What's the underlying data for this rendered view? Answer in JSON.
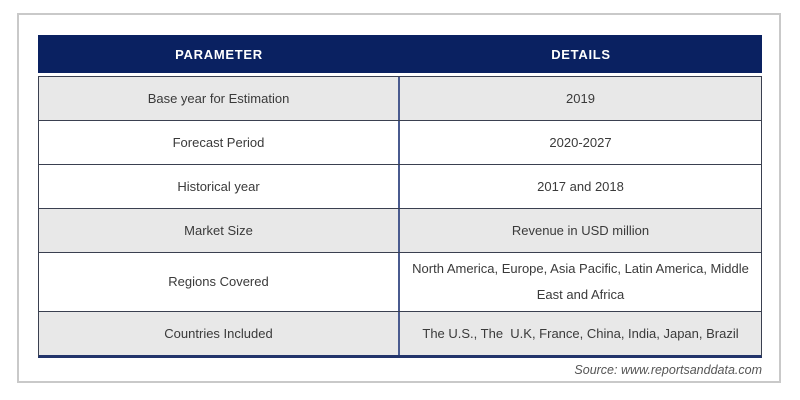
{
  "chart_data": {
    "type": "table",
    "columns": [
      "PARAMETER",
      "DETAILS"
    ],
    "rows": [
      [
        "Base year for Estimation",
        "2019"
      ],
      [
        "Forecast Period",
        "2020-2027"
      ],
      [
        "Historical year",
        "2017 and 2018"
      ],
      [
        "Market Size",
        "Revenue in USD million"
      ],
      [
        "Regions Covered",
        "North America, Europe, Asia Pacific, Latin America, Middle East and Africa"
      ],
      [
        "Countries Included",
        "The U.S., The  U.K, France, China, India, Japan, Brazil"
      ]
    ]
  },
  "source_note": "Source: www.reportsanddata.com",
  "colors": {
    "header_bg": "#0a2161",
    "header_text": "#ffffff",
    "shaded_row_bg": "#e8e8e8",
    "row_border": "#3a4050",
    "column_divider": "#4a5b8f",
    "table_bottom_border": "#22346b",
    "outer_frame_border": "#c9c9c9",
    "body_text": "#3a3a3a",
    "source_text": "#555555"
  }
}
